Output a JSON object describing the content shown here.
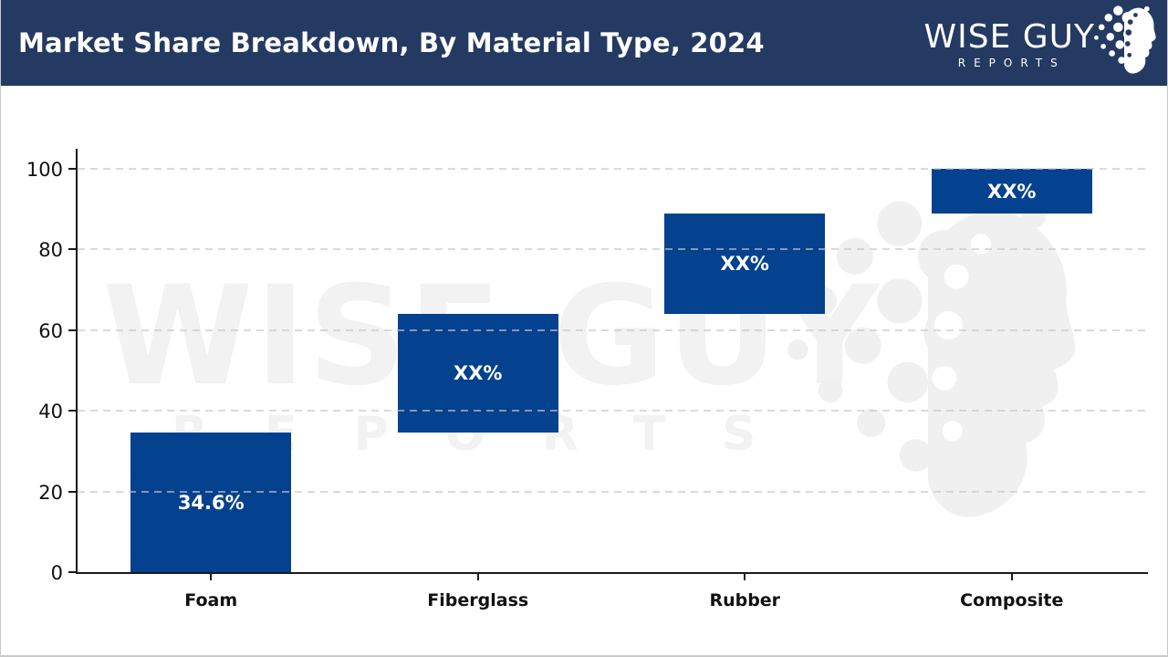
{
  "header": {
    "title": "Market Share Breakdown, By Material Type, 2024",
    "bg_color": "#243a62",
    "logo": {
      "line1": "WISE GUY",
      "line2": "REPORTS"
    }
  },
  "watermark": {
    "line1": "WISE GUY",
    "line2": "REPORTS"
  },
  "chart_data": {
    "type": "bar",
    "subtype": "waterfall",
    "title": "Market Share Breakdown, By Material Type, 2024",
    "categories": [
      "Foam",
      "Fiberglass",
      "Rubber",
      "Composite"
    ],
    "segments": [
      {
        "category": "Foam",
        "start": 0,
        "end": 34.6,
        "label": "34.6%"
      },
      {
        "category": "Fiberglass",
        "start": 34.6,
        "end": 64.1,
        "label": "XX%"
      },
      {
        "category": "Rubber",
        "start": 64.1,
        "end": 88.9,
        "label": "XX%"
      },
      {
        "category": "Composite",
        "start": 88.9,
        "end": 100,
        "label": "XX%"
      }
    ],
    "yticks": [
      0,
      20,
      40,
      60,
      80,
      100
    ],
    "ylim": [
      0,
      105
    ],
    "xlabel": "",
    "ylabel": "",
    "bar_color": "#04418f",
    "bar_label_color": "#ffffff",
    "grid": true,
    "gridline_style": "dashed",
    "gridline_color": "#c6c6c6",
    "axis_color": "#1a1a1a",
    "legend": "none"
  }
}
